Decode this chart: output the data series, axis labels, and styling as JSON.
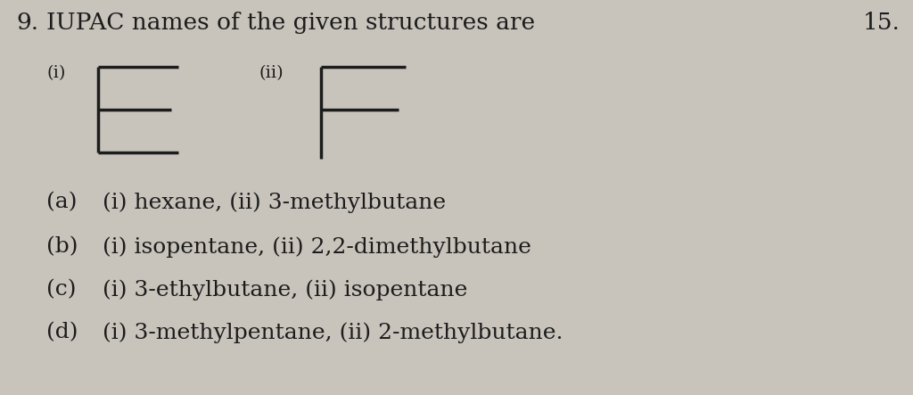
{
  "background_color": "#c8c4bc",
  "question_number": "9.",
  "question_text": "IUPAC names of the given structures are",
  "right_number": "15.",
  "options_a": "(a)",
  "options_b": "(b)",
  "options_c": "(c)",
  "options_d": "(d)",
  "opt_a_text": "(i) hexane, (ii) 3-methylbutane",
  "opt_b_text": "(i) isopentane, (ii) 2,2-dimethylbutane",
  "opt_c_text": "(i) 3-ethylbutane, (ii) isopentane",
  "opt_d_text": "(i) 3-methylpentane, (ii) 2-methylbutane.",
  "label_i": "(i)",
  "label_ii": "(ii)",
  "text_color": "#1c1c1c",
  "line_color": "#1c1c1c",
  "font_size_question": 19,
  "font_size_options": 18,
  "font_size_labels": 14,
  "line_width": 2.5
}
